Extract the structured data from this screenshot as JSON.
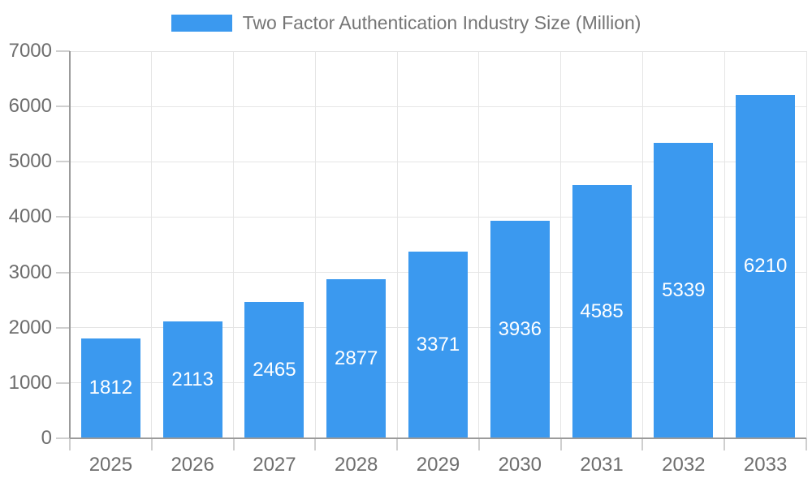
{
  "chart_data": {
    "type": "bar",
    "title": "Two Factor Authentication Industry Size (Million)",
    "legend_position": "top",
    "categories": [
      "2025",
      "2026",
      "2027",
      "2028",
      "2029",
      "2030",
      "2031",
      "2032",
      "2033"
    ],
    "values": [
      1812,
      2113,
      2465,
      2877,
      3371,
      3936,
      4585,
      5339,
      6210
    ],
    "xlabel": "",
    "ylabel": "",
    "ylim": [
      0,
      7000
    ],
    "yticks": [
      0,
      1000,
      2000,
      3000,
      4000,
      5000,
      6000,
      7000
    ],
    "grid": true,
    "data_labels_position": "inside-center",
    "colors": {
      "bar": "#3b99ef",
      "grid_line": "#e5e5e5",
      "tick_mark": "#cfcfcf",
      "axis_line": "#9b9b9b",
      "tick_label": "#6e6e6e",
      "legend_text": "#757575",
      "value_label": "#ffffff",
      "background": "#ffffff"
    }
  }
}
